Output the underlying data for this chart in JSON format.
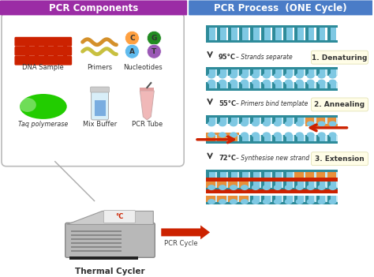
{
  "title_left": "PCR Components",
  "title_right": "PCR Process  (ONE Cycle)",
  "title_left_bg": "#9B2CA5",
  "title_right_bg": "#4A7CC7",
  "title_text_color": "#FFFFFF",
  "bg_color": "#FFFFFF",
  "components": [
    "DNA Sample",
    "Primers",
    "Nucleotides",
    "Taq polymerase",
    "Mix Buffer",
    "PCR Tube"
  ],
  "steps": [
    {
      "temp": "95°C",
      "desc": "Strands separate",
      "label": "1. Denaturing"
    },
    {
      "temp": "55°C",
      "desc": "Primers bind template",
      "label": "2. Annealing"
    },
    {
      "temp": "72°C",
      "desc": "Synthesise new strand",
      "label": "3. Extension"
    }
  ],
  "step_label_bg": "#FFFDE7",
  "dna_teal": "#2E8B9A",
  "dna_light_blue": "#7EC8E3",
  "dna_orange": "#E8903A",
  "dna_red": "#CC2200",
  "arrow_color": "#CC2200",
  "thermal_cycler_label": "Thermal Cycler",
  "pcr_cycle_label": "PCR Cycle",
  "nuc_C_color": "#FFA040",
  "nuc_G_color": "#228B22",
  "nuc_A_color": "#60BBEE",
  "nuc_T_color": "#9B59B6",
  "primer_color1": "#D4902A",
  "primer_color2": "#C8C040",
  "green_blob": "#22CC00"
}
